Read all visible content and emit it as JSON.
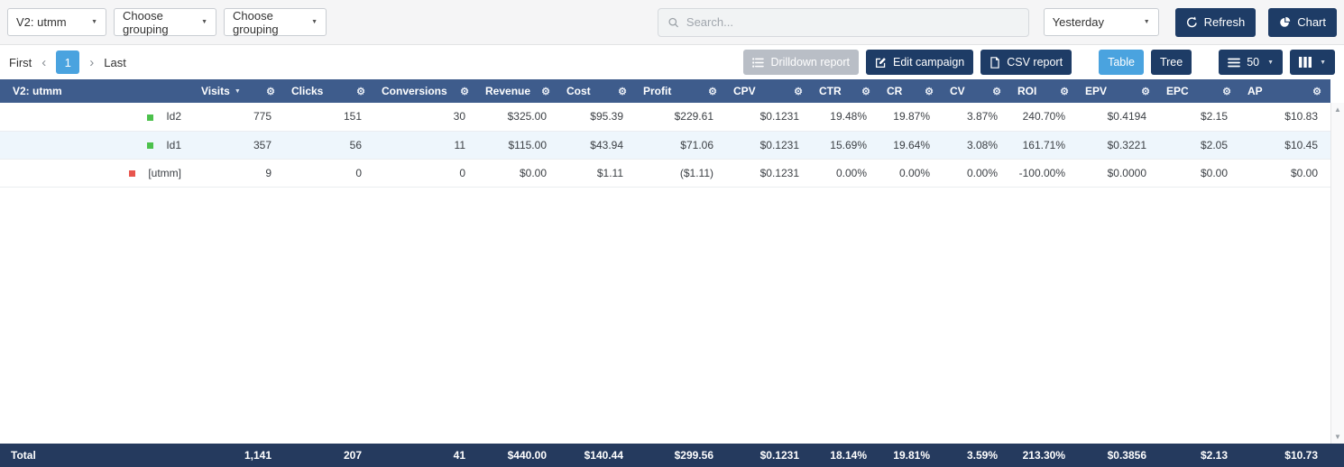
{
  "toolbar": {
    "token_filter": "V2: utmm",
    "grouping_1": "Choose grouping",
    "grouping_2": "Choose grouping",
    "search_placeholder": "Search...",
    "date_range": "Yesterday",
    "refresh": "Refresh",
    "chart": "Chart"
  },
  "pagination": {
    "first": "First",
    "current_page": "1",
    "last": "Last"
  },
  "actions": {
    "drilldown": "Drilldown report",
    "edit_campaign": "Edit campaign",
    "csv_report": "CSV report",
    "table_view": "Table",
    "tree_view": "Tree",
    "rows_per_page": "50"
  },
  "icons": {
    "chevron_down": "▼",
    "gear": "⚙",
    "sort_desc": "▼",
    "prev": "‹",
    "next": "›",
    "scroll_up": "▲",
    "scroll_down": "▼"
  },
  "colors": {
    "positive": "#27ae60",
    "negative": "#e74c3c",
    "accent_blue": "#4aa3df",
    "navy": "#1e3c66",
    "header_blue": "#3e5c8c",
    "footer_navy": "#253a5e"
  },
  "table": {
    "columns": [
      {
        "label": "V2: utmm",
        "gear": false,
        "sorted": false
      },
      {
        "label": "Visits",
        "gear": true,
        "sorted": true
      },
      {
        "label": "Clicks",
        "gear": true,
        "sorted": false
      },
      {
        "label": "Conversions",
        "gear": true,
        "sorted": false
      },
      {
        "label": "Revenue",
        "gear": true,
        "sorted": false
      },
      {
        "label": "Cost",
        "gear": true,
        "sorted": false
      },
      {
        "label": "Profit",
        "gear": true,
        "sorted": false
      },
      {
        "label": "CPV",
        "gear": true,
        "sorted": false
      },
      {
        "label": "CTR",
        "gear": true,
        "sorted": false
      },
      {
        "label": "CR",
        "gear": true,
        "sorted": false
      },
      {
        "label": "CV",
        "gear": true,
        "sorted": false
      },
      {
        "label": "ROI",
        "gear": true,
        "sorted": false
      },
      {
        "label": "EPV",
        "gear": true,
        "sorted": false
      },
      {
        "label": "EPC",
        "gear": true,
        "sorted": false
      },
      {
        "label": "AP",
        "gear": true,
        "sorted": false
      }
    ],
    "rows": [
      {
        "status": "green",
        "cells": [
          "Id2",
          "775",
          "151",
          "30",
          "$325.00",
          "$95.39",
          "$229.61",
          "$0.1231",
          "19.48%",
          "19.87%",
          "3.87%",
          "240.70%",
          "$0.4194",
          "$2.15",
          "$10.83"
        ]
      },
      {
        "status": "green",
        "cells": [
          "Id1",
          "357",
          "56",
          "11",
          "$115.00",
          "$43.94",
          "$71.06",
          "$0.1231",
          "15.69%",
          "19.64%",
          "3.08%",
          "161.71%",
          "$0.3221",
          "$2.05",
          "$10.45"
        ]
      },
      {
        "status": "red",
        "cells": [
          "[utmm]",
          "9",
          "0",
          "0",
          "$0.00",
          "$1.11",
          "($1.11)",
          "$0.1231",
          "0.00%",
          "0.00%",
          "0.00%",
          "-100.00%",
          "$0.0000",
          "$0.00",
          "$0.00"
        ]
      }
    ],
    "total": {
      "cells": [
        "Total",
        "1,141",
        "207",
        "41",
        "$440.00",
        "$140.44",
        "$299.56",
        "$0.1231",
        "18.14%",
        "19.81%",
        "3.59%",
        "213.30%",
        "$0.3856",
        "$2.13",
        "$10.73"
      ]
    }
  }
}
